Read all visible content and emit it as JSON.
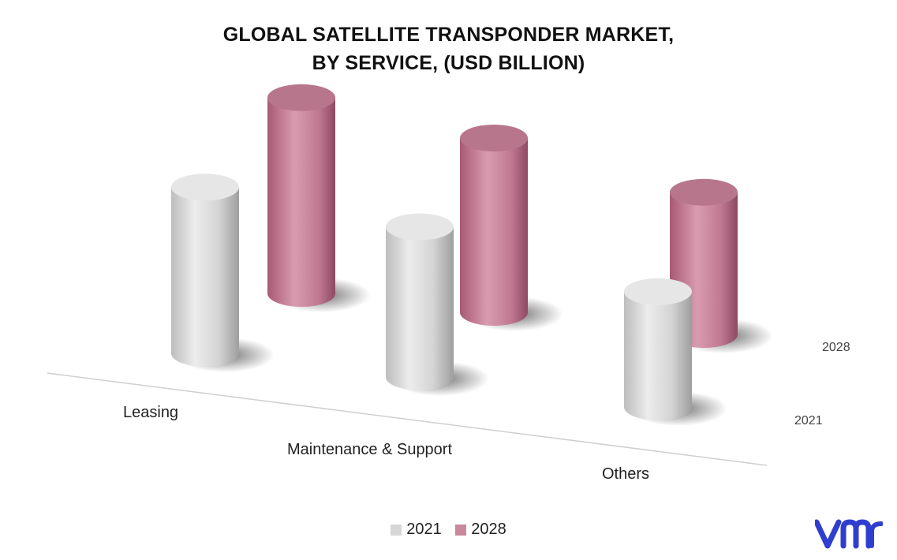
{
  "chart_data": {
    "type": "bar",
    "title": "GLOBAL SATELLITE TRANSPONDER MARKET,",
    "subtitle": "BY SERVICE, (USD BILLION)",
    "categories": [
      "Leasing",
      "Maintenance & Support",
      "Others"
    ],
    "series": [
      {
        "name": "2021",
        "values": [
          6.2,
          5.6,
          4.3
        ]
      },
      {
        "name": "2028",
        "values": [
          7.3,
          6.5,
          5.3
        ]
      }
    ],
    "depth_labels": [
      "2028",
      "2021"
    ],
    "legend_position": "bottom",
    "grid": false,
    "colors": {
      "2021": "#d6d6d6",
      "2028": "#c9889c"
    }
  },
  "legend": {
    "items": [
      {
        "label": "2021",
        "color": "#d6d6d6"
      },
      {
        "label": "2028",
        "color": "#c9889c"
      }
    ]
  },
  "logo": {
    "text": "vm",
    "color": "#2f3ecf"
  }
}
